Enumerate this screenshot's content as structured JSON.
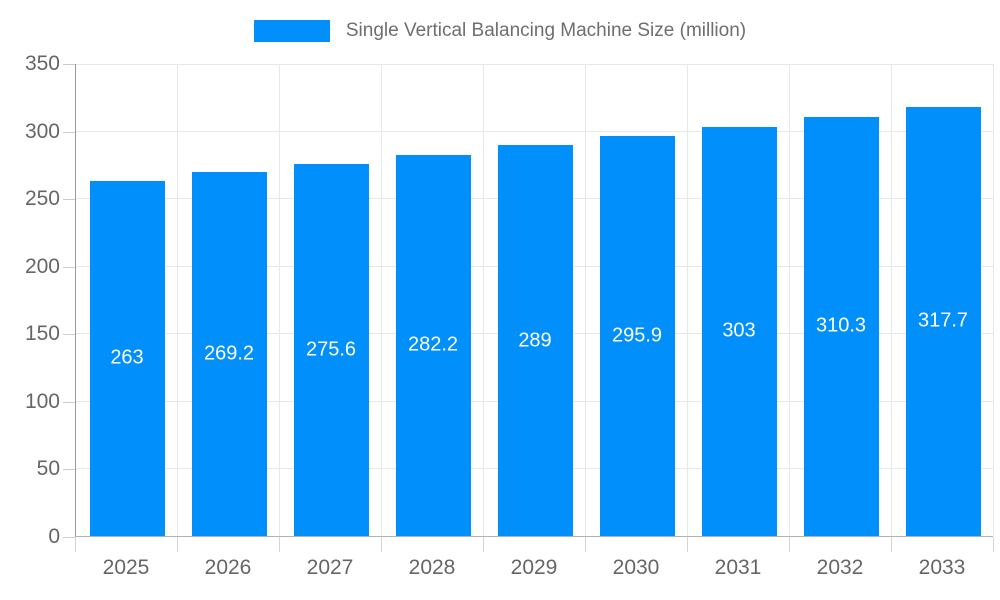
{
  "chart_data": {
    "type": "bar",
    "title": "Single Vertical Balancing Machine Size (million)",
    "categories": [
      "2025",
      "2026",
      "2027",
      "2028",
      "2029",
      "2030",
      "2031",
      "2032",
      "2033"
    ],
    "values": [
      263,
      269.2,
      275.6,
      282.2,
      289,
      295.9,
      303,
      310.3,
      317.7
    ],
    "value_labels": [
      "263",
      "269.2",
      "275.6",
      "282.2",
      "289",
      "295.9",
      "303",
      "310.3",
      "317.7"
    ],
    "xlabel": "",
    "ylabel": "",
    "ylim": [
      0,
      350
    ],
    "yticks": [
      0,
      50,
      100,
      150,
      200,
      250,
      300,
      350
    ],
    "grid": "on",
    "legend_position": "top",
    "colors": {
      "bar": "#008FFB",
      "bar_value_text": "#ffffff",
      "axis_text": "#666666",
      "legend_text": "#6e6e6e",
      "gridline": "#e8e8e8"
    }
  }
}
